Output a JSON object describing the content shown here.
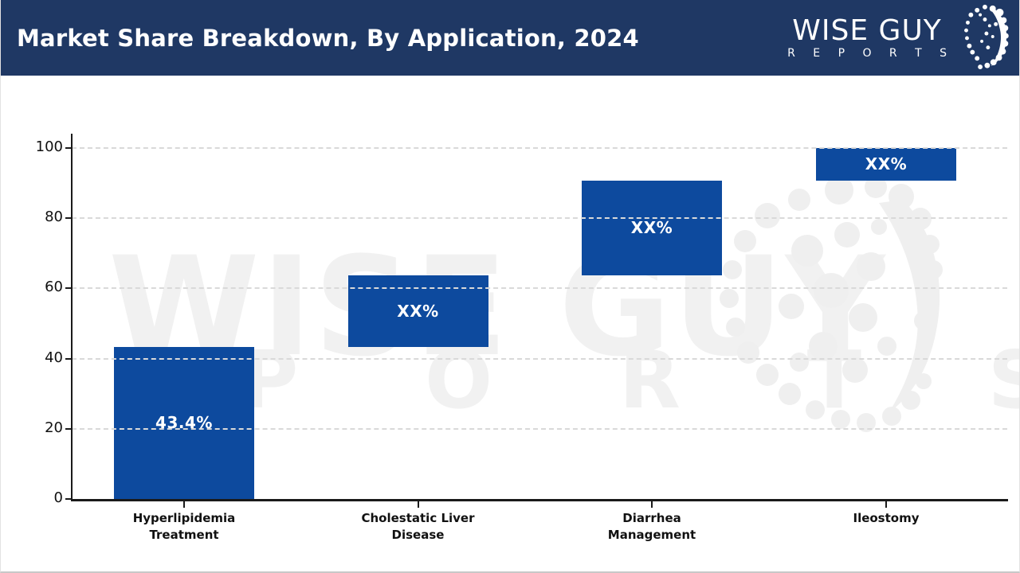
{
  "header": {
    "title": "Market Share Breakdown, By Application, 2024",
    "logo": {
      "line1": "WISE GUY",
      "line2": "R E P O R T S",
      "icon": "wiseguy-head-profile-icon"
    }
  },
  "watermark": {
    "line1": "WISE GUY",
    "line2": "P O R T S",
    "icon": "wiseguy-head-profile-watermark"
  },
  "colors": {
    "header_bg": "#1f3864",
    "bar": "#0d4a9e",
    "bar_label": "#ffffff",
    "gridline": "#d9d9d9",
    "axis": "#1a1a1a",
    "watermark": "#f1f1f1"
  },
  "chart_data": {
    "type": "bar",
    "subtype": "waterfall",
    "title": "Market Share Breakdown, By Application, 2024",
    "categories": [
      "Hyperlipidemia\nTreatment",
      "Cholestatic Liver\nDisease",
      "Diarrhea\nManagement",
      "Ileostomy"
    ],
    "segments": [
      {
        "category": "Hyperlipidemia Treatment",
        "start": 0,
        "end": 43.4,
        "label": "43.4%"
      },
      {
        "category": "Cholestatic Liver Disease",
        "start": 43.4,
        "end": 63.7,
        "label": "XX%"
      },
      {
        "category": "Diarrhea Management",
        "start": 63.7,
        "end": 90.8,
        "label": "XX%"
      },
      {
        "category": "Ileostomy",
        "start": 90.8,
        "end": 100,
        "label": "XX%"
      }
    ],
    "ylim": [
      0,
      105
    ],
    "yticks": [
      0,
      20,
      40,
      60,
      80,
      100
    ],
    "xlabel": "",
    "ylabel": "",
    "grid": "horizontal-dashed",
    "legend": "none"
  }
}
